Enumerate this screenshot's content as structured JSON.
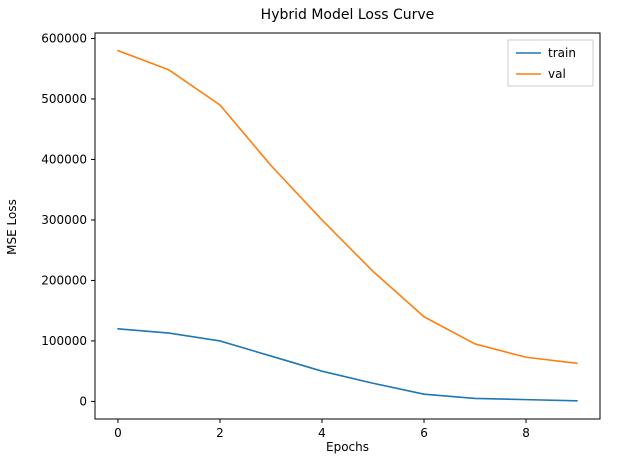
{
  "chart_data": {
    "type": "line",
    "title": "Hybrid Model Loss Curve",
    "xlabel": "Epochs",
    "ylabel": "MSE Loss",
    "x": [
      0,
      1,
      2,
      3,
      4,
      5,
      6,
      7,
      8,
      9
    ],
    "series": [
      {
        "name": "train",
        "color": "#1f77b4",
        "values": [
          120000,
          113000,
          100000,
          75000,
          50000,
          30000,
          12000,
          5000,
          3000,
          1000
        ]
      },
      {
        "name": "val",
        "color": "#ff7f0e",
        "values": [
          580000,
          548000,
          490000,
          390000,
          300000,
          215000,
          140000,
          95000,
          73000,
          63000
        ]
      }
    ],
    "xticks": [
      0,
      2,
      4,
      6,
      8
    ],
    "yticks": [
      0,
      100000,
      200000,
      300000,
      400000,
      500000,
      600000
    ],
    "xlim": [
      -0.45,
      9.45
    ],
    "ylim": [
      -29050,
      609050
    ],
    "legend": {
      "position": "upper right",
      "entries": [
        "train",
        "val"
      ]
    },
    "grid": false,
    "axis_color": "#000000",
    "legend_border_color": "#cccccc",
    "background": "#ffffff"
  }
}
